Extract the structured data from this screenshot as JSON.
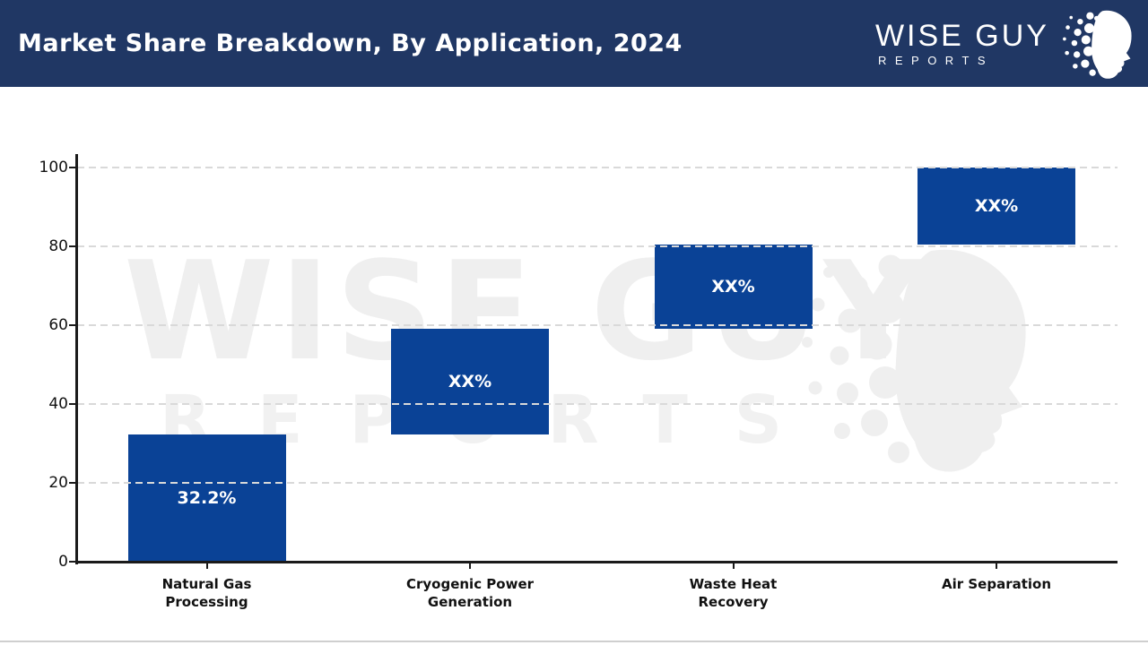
{
  "header": {
    "title": "Market Share Breakdown, By Application, 2024",
    "logo_line1": "WISE GUY",
    "logo_line2": "REPORTS"
  },
  "watermark": {
    "line1": "WISE GUY",
    "line2": "REPORTS"
  },
  "colors": {
    "header_bg": "#203764",
    "bar": "#0a4296",
    "grid": "#d9d9d9",
    "axis": "#1a1a1a",
    "watermark": "#efefef",
    "bottom_line": "#cfcfcf"
  },
  "chart_data": {
    "type": "bar",
    "variant": "waterfall",
    "title": "Market Share Breakdown, By Application, 2024",
    "xlabel": "",
    "ylabel": "",
    "ylim": [
      0,
      100
    ],
    "yticks": [
      0,
      20,
      40,
      60,
      80,
      100
    ],
    "grid": "horizontal-dashed",
    "legend": "none",
    "bar_color": "#0a4296",
    "categories": [
      "Natural Gas Processing",
      "Cryogenic Power Generation",
      "Waste Heat Recovery",
      "Air Separation"
    ],
    "segments": [
      {
        "category": "Natural Gas Processing",
        "category_lines": "Natural Gas\nProcessing",
        "start": 0,
        "end": 32.2,
        "value": 32.2,
        "label": "32.2%"
      },
      {
        "category": "Cryogenic Power Generation",
        "category_lines": "Cryogenic Power\nGeneration",
        "start": 32.2,
        "end": 59.0,
        "value": 26.8,
        "label": "XX%"
      },
      {
        "category": "Waste Heat Recovery",
        "category_lines": "Waste Heat\nRecovery",
        "start": 59.0,
        "end": 80.5,
        "value": 21.5,
        "label": "XX%"
      },
      {
        "category": "Air Separation",
        "category_lines": "Air Separation",
        "start": 80.5,
        "end": 100.0,
        "value": 19.5,
        "label": "XX%"
      }
    ]
  }
}
